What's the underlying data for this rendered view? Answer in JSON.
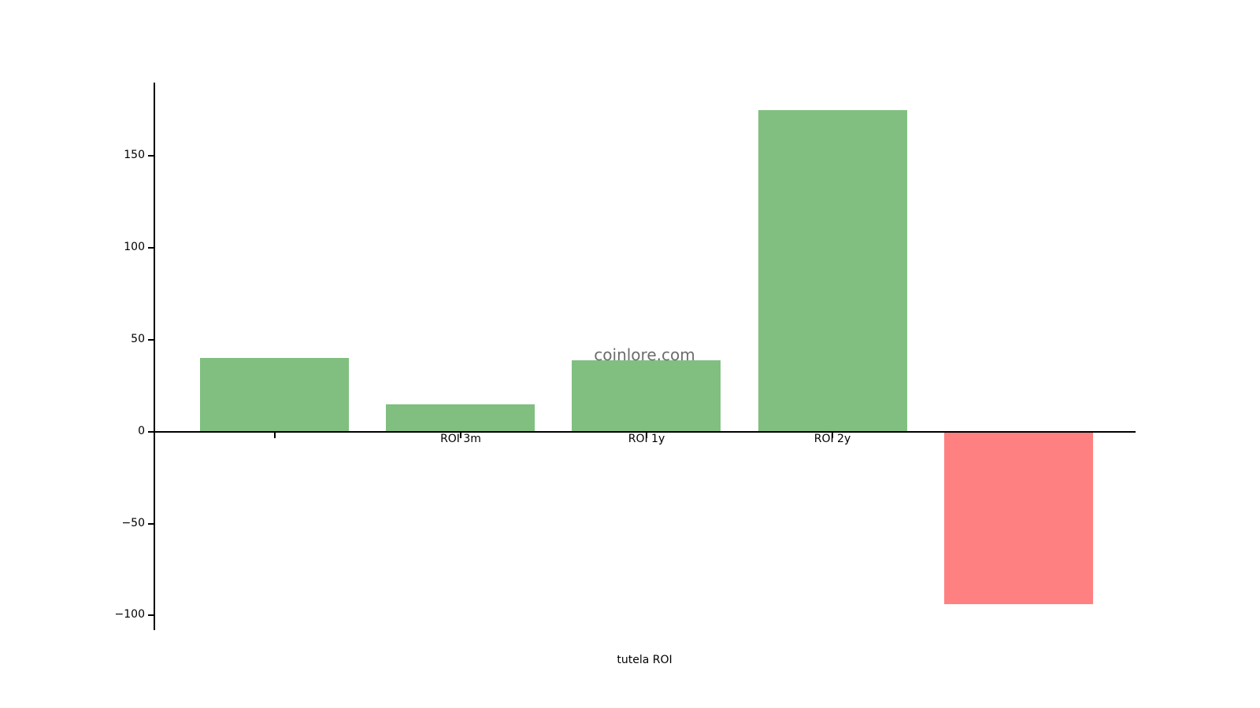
{
  "figure": {
    "background": "#ffffff"
  },
  "watermark": {
    "text": "coinlore.com",
    "color": "#6c6c6c"
  },
  "chart_data": {
    "type": "bar",
    "xlabel": "tutela ROI",
    "categories": [
      "",
      "ROI 3m",
      "ROI 1y",
      "ROI 2y",
      ""
    ],
    "values": [
      40,
      15,
      39,
      175,
      -94
    ],
    "positive_color": "#80bf80",
    "negative_color": "#ff8080",
    "yticks": [
      150,
      100,
      50,
      0,
      -50,
      -100
    ],
    "ytick_labels": [
      "150",
      "100",
      "50",
      "0",
      "−50",
      "−100"
    ],
    "xtick_positions": [
      0,
      1,
      2,
      3
    ],
    "ylim": [
      -108,
      190
    ],
    "grid": false,
    "legend": false,
    "axis_color": "#000000"
  }
}
